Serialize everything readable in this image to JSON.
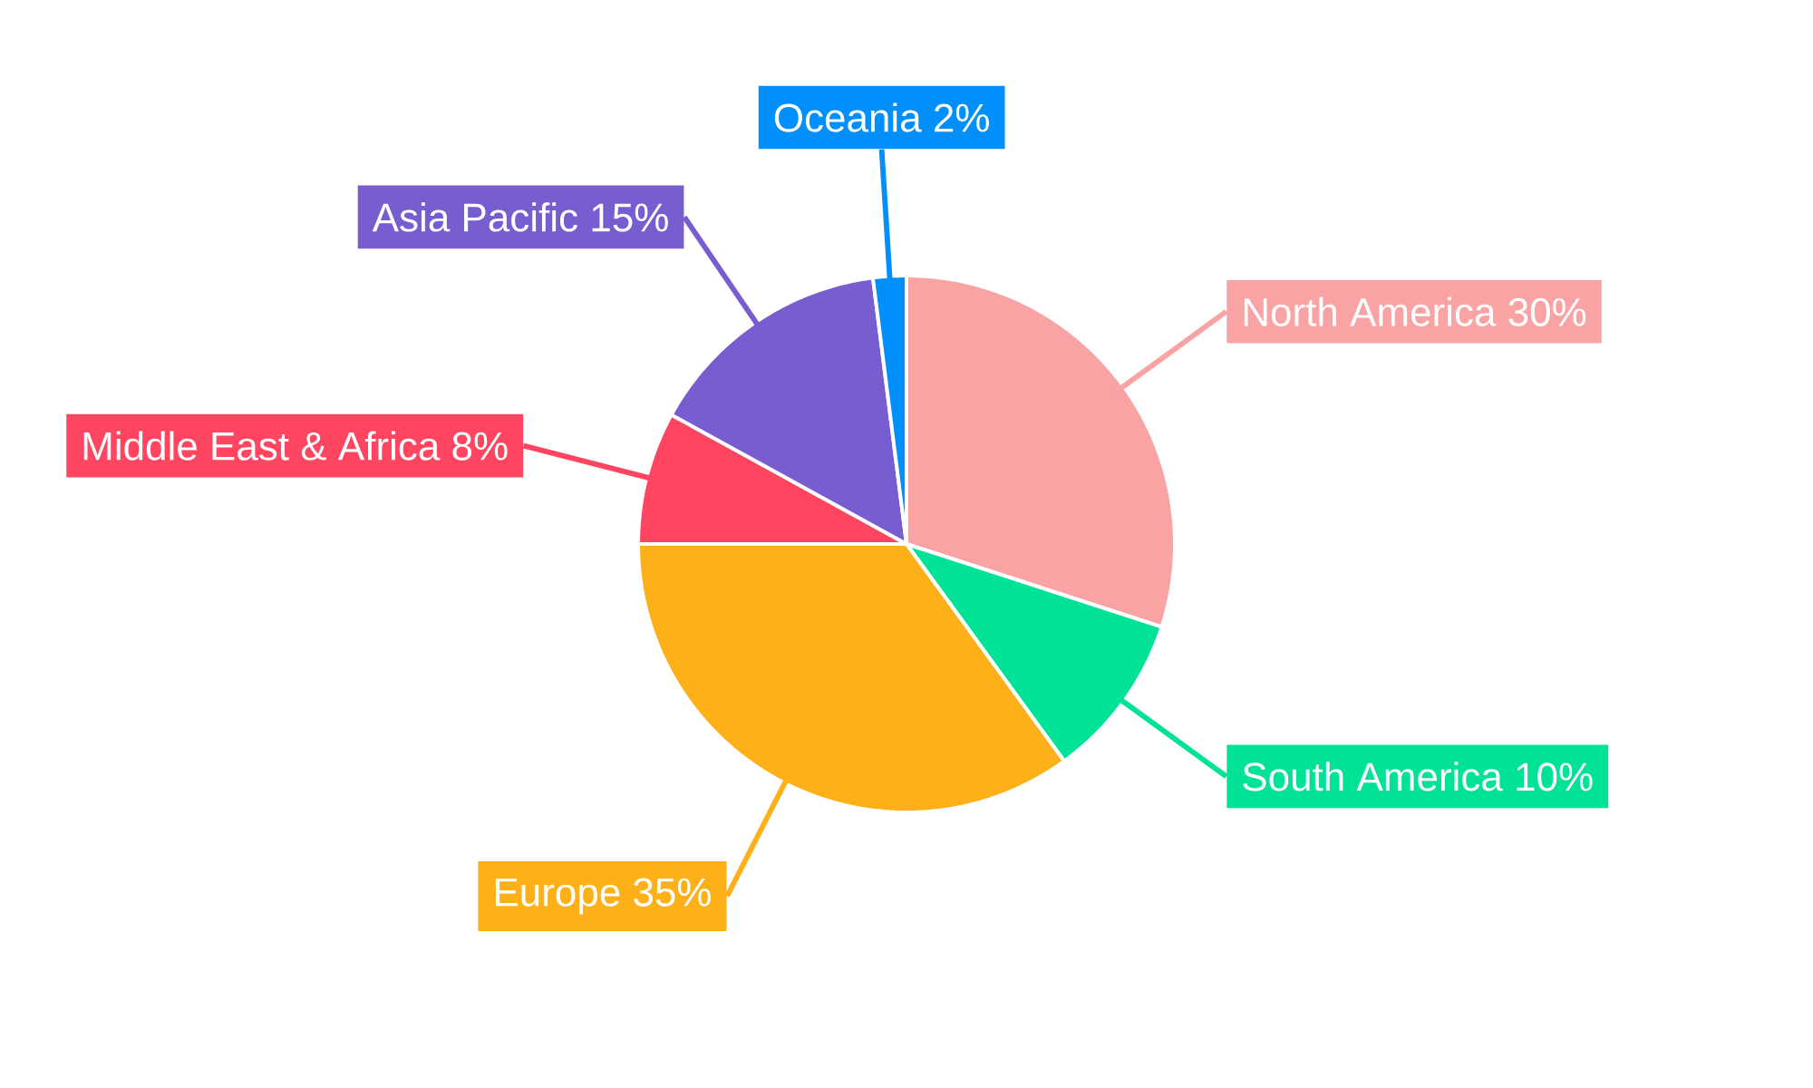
{
  "chart_data": {
    "type": "pie",
    "categories": [
      "North America",
      "South America",
      "Europe",
      "Middle East & Africa",
      "Asia Pacific",
      "Oceania"
    ],
    "values": [
      30,
      10,
      35,
      8,
      15,
      2
    ],
    "value_labels": [
      "30%",
      "10%",
      "35%",
      "8%",
      "15%",
      "2%"
    ],
    "colors": [
      "#f9a3a4",
      "#00e396",
      "#feb019",
      "#ff4560",
      "#775dd0",
      "#008ffb"
    ]
  }
}
